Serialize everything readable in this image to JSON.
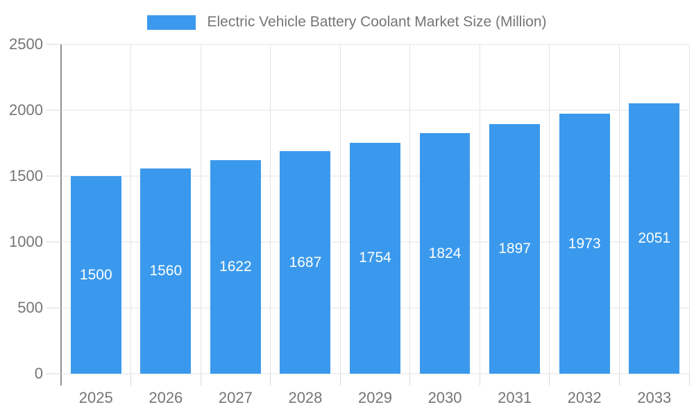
{
  "colors": {
    "bar": "#3a99ec",
    "grid": "#e3e3e3",
    "axis": "#8e8e8e",
    "tick": "#d9d9d9",
    "text": "#757575",
    "value_label": "#ffffff",
    "background": "#ffffff"
  },
  "legend": {
    "swatch": "series-color-swatch",
    "label": "Electric Vehicle Battery Coolant Market Size (Million)"
  },
  "chart_data": {
    "type": "bar",
    "title": "Electric Vehicle Battery Coolant Market Size (Million)",
    "categories": [
      "2025",
      "2026",
      "2027",
      "2028",
      "2029",
      "2030",
      "2031",
      "2032",
      "2033"
    ],
    "values": [
      1500,
      1560,
      1622,
      1687,
      1754,
      1824,
      1897,
      1973,
      2051
    ],
    "series": [
      {
        "name": "Electric Vehicle Battery Coolant Market Size (Million)",
        "values": [
          1500,
          1560,
          1622,
          1687,
          1754,
          1824,
          1897,
          1973,
          2051
        ]
      }
    ],
    "xlabel": "",
    "ylabel": "",
    "ylim": [
      0,
      2500
    ],
    "yticks": [
      0,
      500,
      1000,
      1500,
      2000,
      2500
    ],
    "grid": true,
    "legend_position": "top",
    "value_labels": "inside-center"
  }
}
